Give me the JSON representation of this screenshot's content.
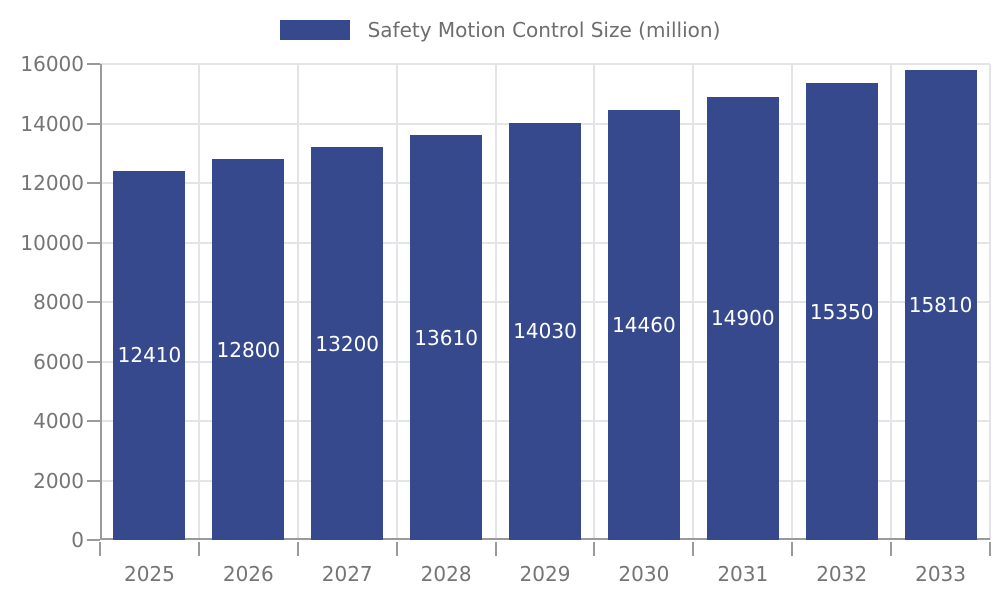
{
  "legend": {
    "label": "Safety Motion Control Size (million)",
    "swatch_color": "#35498c"
  },
  "chart_data": {
    "type": "bar",
    "title": "Safety Motion Control Size (million)",
    "series_name": "Safety Motion Control Size (million)",
    "categories": [
      "2025",
      "2026",
      "2027",
      "2028",
      "2029",
      "2030",
      "2031",
      "2032",
      "2033"
    ],
    "values": [
      12410,
      12800,
      13200,
      13610,
      14030,
      14460,
      14900,
      15350,
      15810
    ],
    "value_labels": [
      "12410",
      "12800",
      "13200",
      "13610",
      "14030",
      "14460",
      "14900",
      "15350",
      "15810"
    ],
    "xlabel": "",
    "ylabel": "",
    "ylim": [
      0,
      16000
    ],
    "ytick_step": 2000,
    "yticks": [
      0,
      2000,
      4000,
      6000,
      8000,
      10000,
      12000,
      14000,
      16000
    ],
    "grid": true,
    "legend_position": "top",
    "value_label_position": "inside-center",
    "colors": {
      "bar": "#35498c",
      "value_label": "#ffffff",
      "gridline": "#e3e3e8",
      "axis": "#9a9a9a",
      "axis_label": "#757575",
      "legend_text": "#6e6e6e",
      "background": "#ffffff"
    }
  }
}
